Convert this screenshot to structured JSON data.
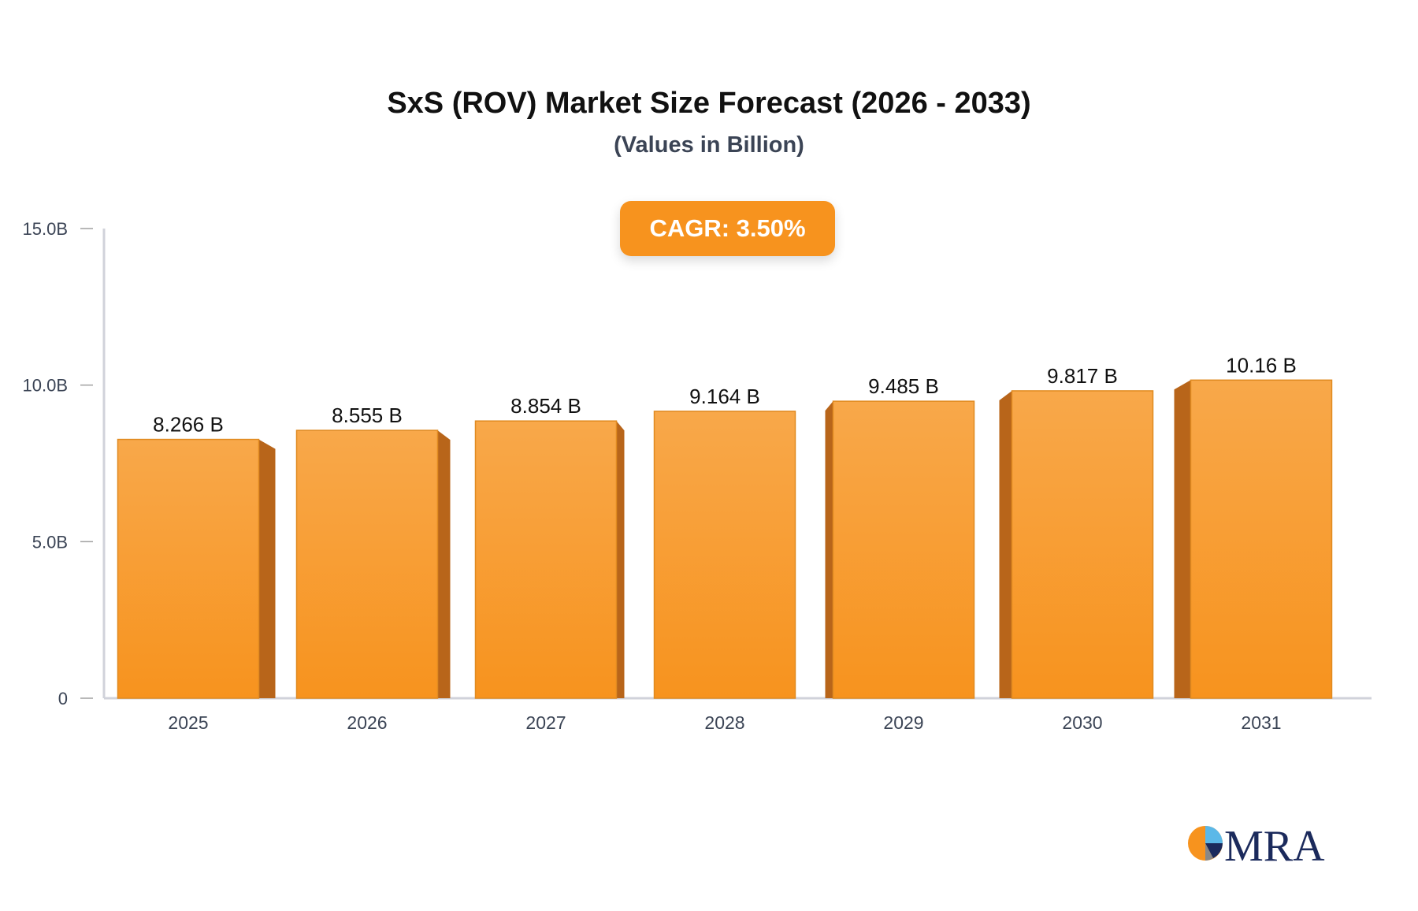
{
  "chart_data": {
    "type": "bar",
    "title": "SxS (ROV) Market Size Forecast (2026 - 2033)",
    "subtitle": "(Values in Billion)",
    "annotation": "CAGR: 3.50%",
    "categories": [
      "2025",
      "2026",
      "2027",
      "2028",
      "2029",
      "2030",
      "2031"
    ],
    "values": [
      8.266,
      8.555,
      8.854,
      9.164,
      9.485,
      9.817,
      10.16
    ],
    "data_labels": [
      "8.266 B",
      "8.555 B",
      "8.854 B",
      "9.164 B",
      "9.485 B",
      "9.817 B",
      "10.16 B"
    ],
    "ylim": [
      0,
      15
    ],
    "yticks": [
      0,
      5,
      10,
      15
    ],
    "ytick_labels": [
      "0",
      "5.0B",
      "10.0B",
      "15.0B"
    ],
    "xlabel": "",
    "ylabel": "",
    "grid": false,
    "colors": {
      "bar": "#f7931e",
      "bar_top": "#f8a84a",
      "side": "#b8651a",
      "accent": "#f7931e"
    }
  },
  "logo": {
    "text": "MRA"
  }
}
